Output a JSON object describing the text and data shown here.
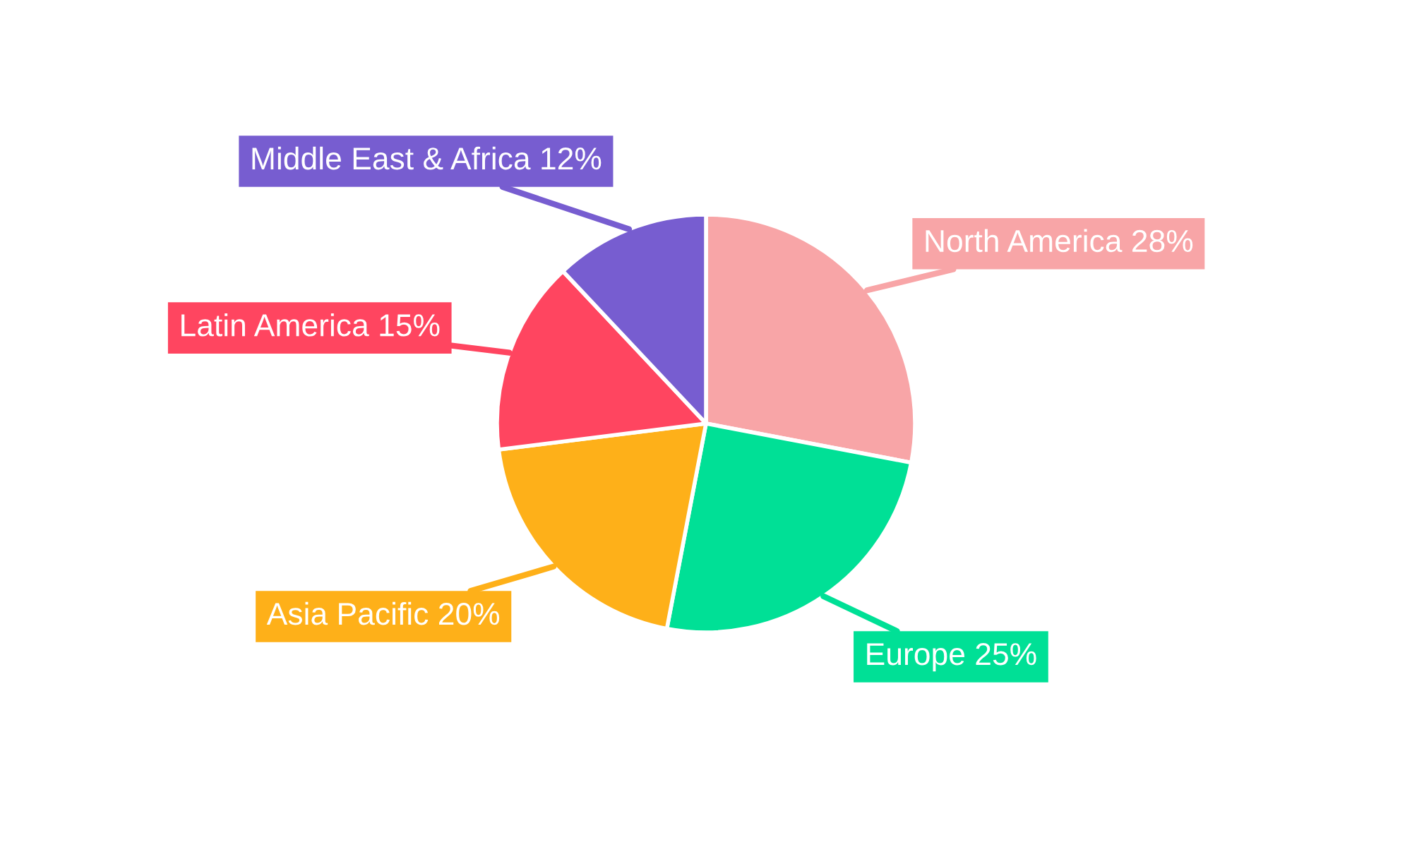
{
  "chart_data": {
    "type": "pie",
    "categories": [
      "North America",
      "Europe",
      "Asia Pacific",
      "Latin America",
      "Middle East & Africa"
    ],
    "values": [
      28,
      25,
      20,
      15,
      12
    ],
    "value_labels": [
      "28%",
      "25%",
      "20%",
      "15%",
      "12%"
    ],
    "colors": [
      "#f8a5a7",
      "#00e096",
      "#feb019",
      "#ff4560",
      "#775dd0"
    ],
    "legend": false
  }
}
